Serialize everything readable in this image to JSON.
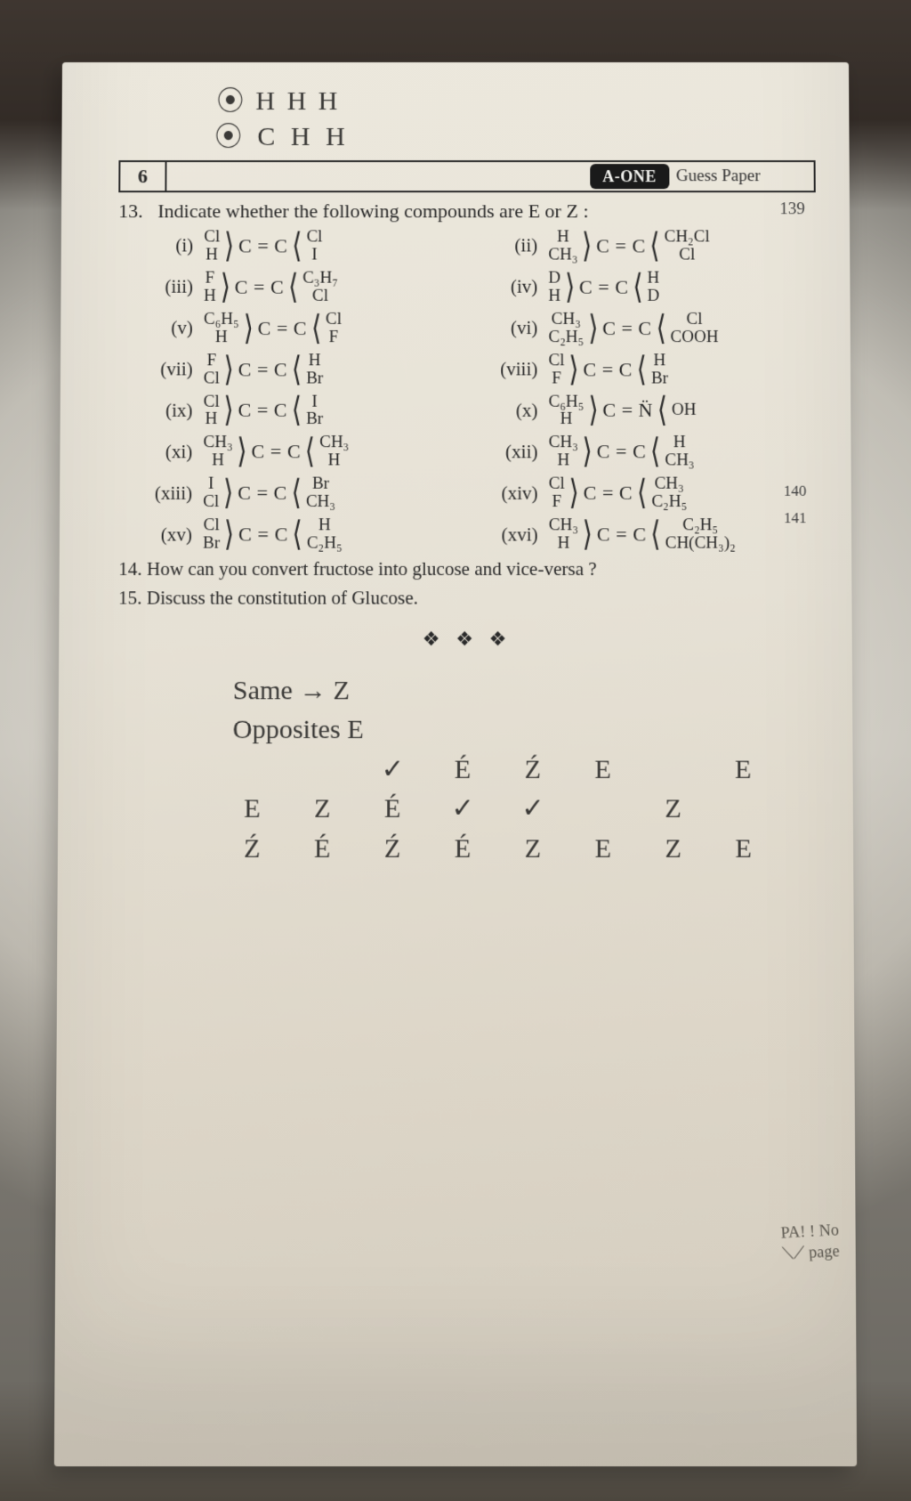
{
  "colors": {
    "ink": "#2a2a2a",
    "paper_top": "#ece8dd",
    "paper_bot": "#d2cbbd",
    "badge_bg": "#1a1a1a",
    "badge_fg": "#f2f2ee",
    "handwriting": "#3b3a38"
  },
  "handwriting_top": {
    "line1": "⦿ H H H",
    "line2": "⦿ C H H"
  },
  "banner": {
    "box_number": "6",
    "badge": "A-ONE",
    "title": "Guess Paper"
  },
  "page_number_right": "139",
  "q13": {
    "number": "13.",
    "text": "Indicate whether the following compounds are E or Z :"
  },
  "compounds": [
    {
      "label": "(i)",
      "tl": "Cl",
      "bl": "H",
      "tr": "Cl",
      "br": "I",
      "center": "C = C"
    },
    {
      "label": "(ii)",
      "tl": "H",
      "bl": "CH₃",
      "tr": "CH₂Cl",
      "br": "Cl",
      "center": "C = C"
    },
    {
      "label": "(iii)",
      "tl": "F",
      "bl": "H",
      "tr": "C₃H₇",
      "br": "Cl",
      "center": "C = C"
    },
    {
      "label": "(iv)",
      "tl": "D",
      "bl": "H",
      "tr": "H",
      "br": "D",
      "center": "C = C"
    },
    {
      "label": "(v)",
      "tl": "C₆H₅",
      "bl": "H",
      "tr": "Cl",
      "br": "F",
      "center": "C = C"
    },
    {
      "label": "(vi)",
      "tl": "CH₃",
      "bl": "C₂H₅",
      "tr": "Cl",
      "br": "COOH",
      "center": "C = C"
    },
    {
      "label": "(vii)",
      "tl": "F",
      "bl": "Cl",
      "tr": "H",
      "br": "Br",
      "center": "C = C"
    },
    {
      "label": "(viii)",
      "tl": "Cl",
      "bl": "F",
      "tr": "H",
      "br": "Br",
      "center": "C = C"
    },
    {
      "label": "(ix)",
      "tl": "Cl",
      "bl": "H",
      "tr": "I",
      "br": "Br",
      "center": "C = C"
    },
    {
      "label": "(x)",
      "tl": "C₆H₅",
      "bl": "H",
      "tr": "",
      "br": "OH",
      "center": "C = N̈"
    },
    {
      "label": "(xi)",
      "tl": "CH₃",
      "bl": "H",
      "tr": "CH₃",
      "br": "H",
      "center": "C = C"
    },
    {
      "label": "(xii)",
      "tl": "CH₃",
      "bl": "H",
      "tr": "H",
      "br": "CH₃",
      "center": "C = C"
    },
    {
      "label": "(xiii)",
      "tl": "I",
      "bl": "Cl",
      "tr": "Br",
      "br": "CH₃",
      "center": "C = C"
    },
    {
      "label": "(xiv)",
      "tl": "Cl",
      "bl": "F",
      "tr": "CH₃",
      "br": "C₂H₅",
      "center": "C = C"
    },
    {
      "label": "(xv)",
      "tl": "Cl",
      "bl": "Br",
      "tr": "H",
      "br": "C₂H₅",
      "center": "C = C"
    },
    {
      "label": "(xvi)",
      "tl": "CH₃",
      "bl": "H",
      "tr": "C₂H₅",
      "br": "CH(CH₃)₂",
      "center": "C = C"
    }
  ],
  "page_numbers_bottom": {
    "a": "140",
    "b": "141"
  },
  "q14": {
    "number": "14.",
    "text": "How can you convert fructose into glucose and vice-versa ?"
  },
  "q15": {
    "number": "15.",
    "text": "Discuss the constitution of Glucose."
  },
  "ornament": "❖ ❖ ❖",
  "notes": {
    "line1_a": "Same",
    "line1_arrow": "→",
    "line1_b": "Z",
    "line2": "Opposites  E",
    "row1": [
      "",
      "",
      "✓",
      "É",
      "Ź",
      "E",
      "",
      "E"
    ],
    "row2": [
      "E",
      "Z",
      "É",
      "✓",
      "✓",
      "",
      "Z",
      ""
    ],
    "row3": [
      "Ź",
      "É",
      "Ź",
      "É",
      "Z",
      "E",
      "Z",
      "E"
    ]
  },
  "side_scribble": [
    "PA! ! No",
    "⟍⟋ page"
  ]
}
